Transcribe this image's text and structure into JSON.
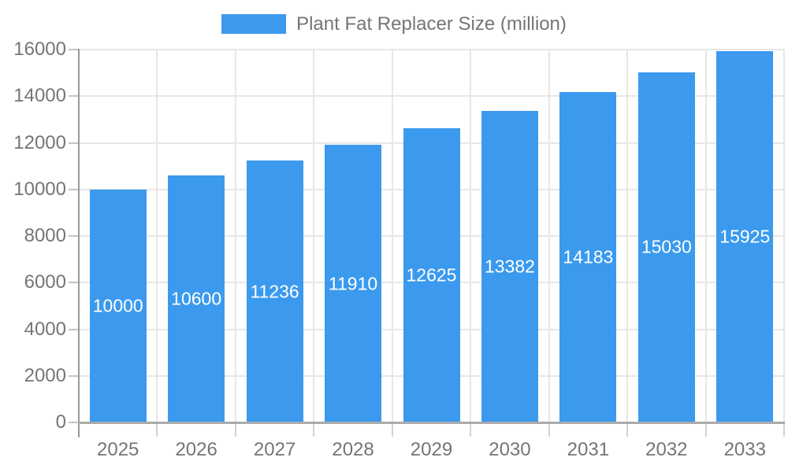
{
  "chart_data": {
    "type": "bar",
    "title": "",
    "legend": "Plant Fat Replacer Size (million)",
    "legend_position": "top-center",
    "categories": [
      "2025",
      "2026",
      "2027",
      "2028",
      "2029",
      "2030",
      "2031",
      "2032",
      "2033"
    ],
    "values": [
      10000,
      10600,
      11236,
      11910,
      12625,
      13382,
      14183,
      15030,
      15925
    ],
    "xlabel": "",
    "ylabel": "",
    "ylim": [
      0,
      16000
    ],
    "yticks": [
      0,
      2000,
      4000,
      6000,
      8000,
      10000,
      12000,
      14000,
      16000
    ],
    "grid": true,
    "colors": {
      "bar": "#3b9aed",
      "bar_value_text": "#ffffff",
      "axis_text": "#757575",
      "legend_text": "#757575"
    }
  }
}
